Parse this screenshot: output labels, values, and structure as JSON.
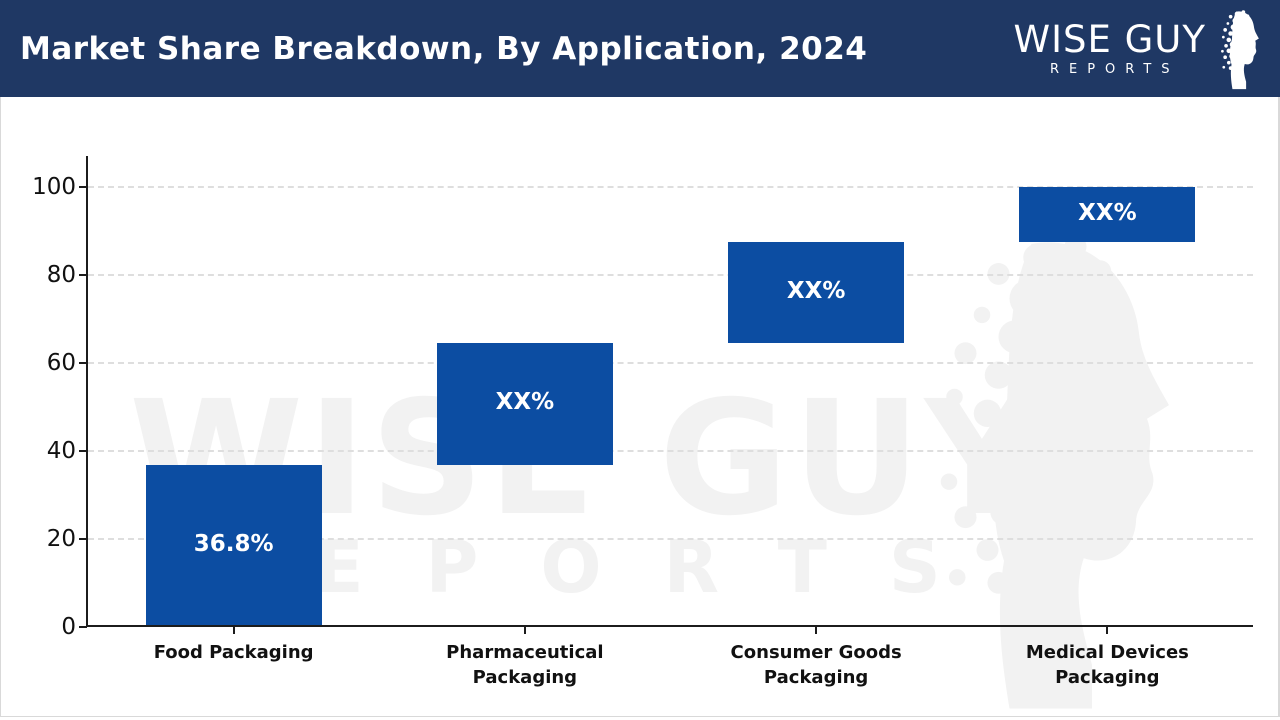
{
  "header": {
    "title": "Market Share Breakdown, By Application, 2024",
    "logo": {
      "name": "WISE GUY",
      "sub": "REPORTS"
    }
  },
  "watermark": {
    "name": "WISE GUY",
    "sub": "REPORTS"
  },
  "chart_data": {
    "type": "bar",
    "subtype": "waterfall",
    "title": "Market Share Breakdown, By Application, 2024",
    "categories": [
      "Food Packaging",
      "Pharmaceutical\nPackaging",
      "Consumer Goods\nPackaging",
      "Medical Devices\nPackaging"
    ],
    "series": [
      {
        "name": "Market share %",
        "segments": [
          {
            "category": "Food Packaging",
            "start": 0,
            "end": 36.8,
            "label": "36.8%"
          },
          {
            "category": "Pharmaceutical Packaging",
            "start": 36.8,
            "end": 64.5,
            "label": "XX%"
          },
          {
            "category": "Consumer Goods Packaging",
            "start": 64.5,
            "end": 87.5,
            "label": "XX%"
          },
          {
            "category": "Medical Devices Packaging",
            "start": 87.5,
            "end": 100,
            "label": "XX%"
          }
        ]
      }
    ],
    "xlabel": "",
    "ylabel": "",
    "ylim": [
      0,
      100
    ],
    "yticks": [
      0,
      20,
      40,
      60,
      80,
      100
    ],
    "grid": "horizontal-dashed",
    "legend": "none",
    "bar_color": "#0c4da2",
    "bar_label_color": "#ffffff"
  },
  "colors": {
    "header_bg": "#1f3864",
    "bar": "#0c4da2",
    "axis": "#1c1c1c",
    "gridline": "#dedede",
    "watermark": "#f2f2f2",
    "frame_border": "#d9d9d9"
  }
}
